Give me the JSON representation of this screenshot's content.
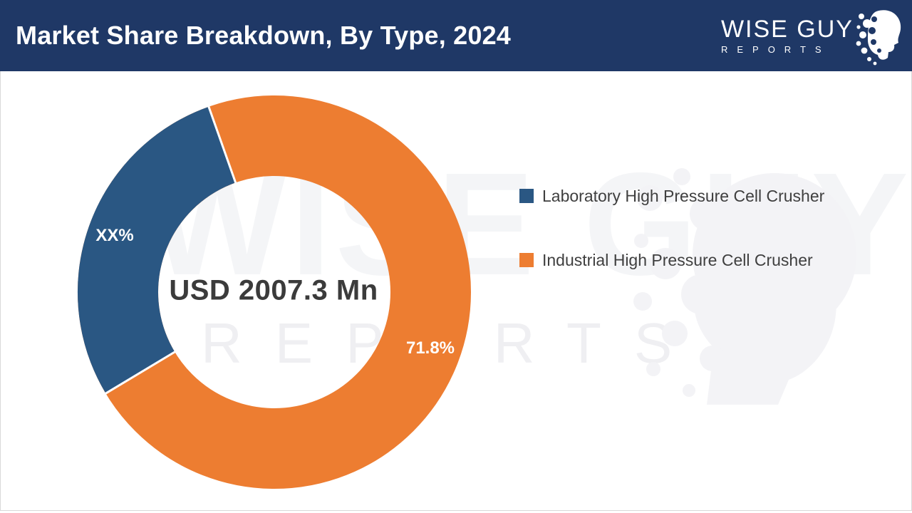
{
  "header": {
    "title": "Market Share Breakdown, By Type, 2024",
    "logo": {
      "name": "WISE GUY",
      "tagline": "REPORTS"
    }
  },
  "chart_data": {
    "type": "pie",
    "subtype": "donut",
    "title": "Market Share Breakdown, By Type, 2024",
    "center_label": "USD 2007.3 Mn",
    "legend_position": "right",
    "start_angle_deg": 149,
    "slices": [
      {
        "name": "Laboratory High Pressure Cell Crusher",
        "label": "XX%",
        "value_pct": 28.2,
        "color": "#2a5783"
      },
      {
        "name": "Industrial High Pressure Cell Crusher",
        "label": "71.8%",
        "value_pct": 71.8,
        "color": "#ed7d31"
      }
    ]
  },
  "watermark": {
    "brand": "WISE GUY",
    "tagline": "REPORTS"
  },
  "colors": {
    "header_bg": "#1f3866",
    "frame_border": "#d9d9d9",
    "center_text": "#3b3b3b",
    "legend_text": "#3f3f3f",
    "slice_separator": "#ffffff"
  }
}
